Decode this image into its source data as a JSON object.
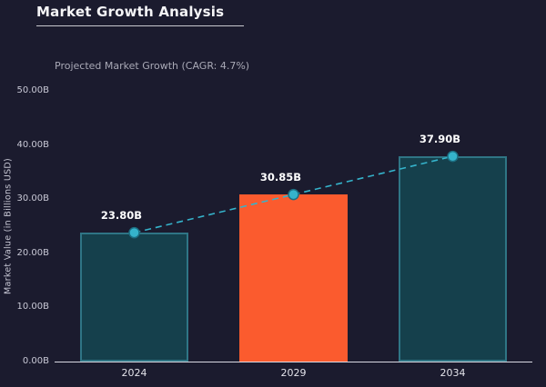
{
  "chart_data": {
    "type": "bar",
    "title": "Market Growth Analysis",
    "subtitle": "Projected Market Growth (CAGR: 4.7%)",
    "ylabel": "Market Value (in Billions USD)",
    "categories": [
      "2024",
      "2029",
      "2034"
    ],
    "values": [
      23.8,
      30.85,
      37.9
    ],
    "value_labels": [
      "23.80B",
      "30.85B",
      "37.90B"
    ],
    "yticks": [
      0,
      10,
      20,
      30,
      40,
      50
    ],
    "ytick_labels": [
      "0.00B",
      "10.00B",
      "20.00B",
      "30.00B",
      "40.00B",
      "50.00B"
    ],
    "ylim": [
      0,
      50
    ],
    "bar_colors": [
      "#15404c",
      "#fb5b2e",
      "#15404c"
    ],
    "bar_border_colors": [
      "#2f7585",
      "#fb5b2e",
      "#2f7585"
    ],
    "line_color": "#35b3cb",
    "marker_edge_color": "#1c6e82",
    "legend": "none",
    "grid": "off",
    "background_color": "#1b1b2e"
  }
}
